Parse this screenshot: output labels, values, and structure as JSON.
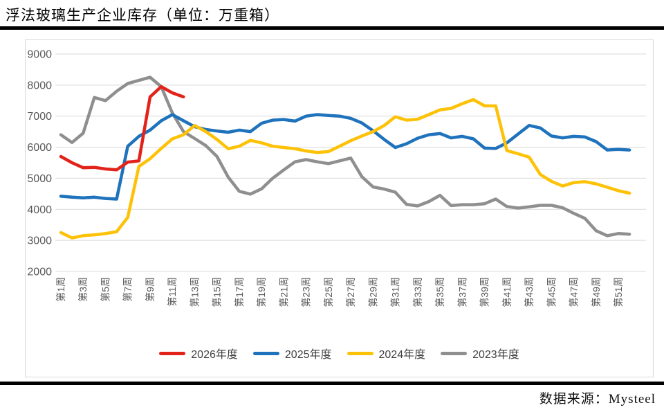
{
  "header": {
    "title": "浮法玻璃生产企业库存（单位：万重箱）"
  },
  "footer": {
    "source": "数据来源：Mysteel"
  },
  "colors": {
    "gridline": "#d9d9d9",
    "axis_text": "#595959",
    "box_border": "#d9d9d9",
    "rule": "#000000",
    "red": "#e2231a",
    "blue": "#1f72bc",
    "yellow": "#fdc208",
    "gray": "#8f8f8f"
  },
  "chart_data": {
    "type": "line",
    "title": "浮法玻璃生产企业库存（单位：万重箱）",
    "x_axis": {
      "weeks_total": 52,
      "tick_labels": [
        "第1周",
        "第3周",
        "第5周",
        "第7周",
        "第9周",
        "第11周",
        "第13周",
        "第15周",
        "第17周",
        "第19周",
        "第21周",
        "第23周",
        "第25周",
        "第27周",
        "第29周",
        "第31周",
        "第33周",
        "第35周",
        "第37周",
        "第39周",
        "第41周",
        "第43周",
        "第45周",
        "第47周",
        "第49周",
        "第51周"
      ]
    },
    "y_axis": {
      "min": 2000,
      "max": 9000,
      "ticks": [
        2000,
        3000,
        4000,
        5000,
        6000,
        7000,
        8000,
        9000
      ]
    },
    "grid": true,
    "legend_position": "bottom",
    "series": [
      {
        "name": "2026年度",
        "color": "#e2231a",
        "start_week": 1,
        "values": [
          5700,
          5500,
          5340,
          5350,
          5300,
          5270,
          5520,
          5560,
          7620,
          7950,
          7750,
          7620
        ]
      },
      {
        "name": "2025年度",
        "color": "#1f72bc",
        "start_week": 1,
        "values": [
          4420,
          4390,
          4370,
          4390,
          4350,
          4330,
          6030,
          6350,
          6550,
          6850,
          7050,
          6850,
          6660,
          6570,
          6520,
          6480,
          6550,
          6500,
          6770,
          6870,
          6890,
          6840,
          7000,
          7050,
          7020,
          7000,
          6930,
          6780,
          6530,
          6250,
          5990,
          6110,
          6290,
          6400,
          6440,
          6300,
          6350,
          6270,
          5970,
          5960,
          6140,
          6420,
          6700,
          6620,
          6360,
          6300,
          6350,
          6330,
          6180,
          5910,
          5930,
          5910
        ]
      },
      {
        "name": "2024年度",
        "color": "#fdc208",
        "start_week": 1,
        "values": [
          3250,
          3080,
          3150,
          3180,
          3220,
          3280,
          3740,
          5380,
          5630,
          5960,
          6270,
          6400,
          6700,
          6500,
          6250,
          5950,
          6030,
          6220,
          6140,
          6030,
          5990,
          5950,
          5880,
          5830,
          5860,
          6030,
          6210,
          6360,
          6500,
          6700,
          6980,
          6870,
          6900,
          7050,
          7200,
          7250,
          7400,
          7530,
          7330,
          7330,
          5890,
          5790,
          5680,
          5120,
          4900,
          4750,
          4860,
          4890,
          4820,
          4710,
          4600,
          4520
        ]
      },
      {
        "name": "2023年度",
        "color": "#8f8f8f",
        "start_week": 1,
        "values": [
          6400,
          6150,
          6450,
          7600,
          7500,
          7800,
          8050,
          8150,
          8250,
          7950,
          7100,
          6500,
          6280,
          6050,
          5700,
          5040,
          4580,
          4490,
          4660,
          5000,
          5270,
          5530,
          5600,
          5530,
          5470,
          5560,
          5650,
          5050,
          4720,
          4650,
          4550,
          4160,
          4110,
          4250,
          4450,
          4120,
          4150,
          4150,
          4180,
          4330,
          4090,
          4040,
          4080,
          4130,
          4130,
          4050,
          3870,
          3710,
          3310,
          3150,
          3220,
          3200
        ]
      }
    ]
  }
}
